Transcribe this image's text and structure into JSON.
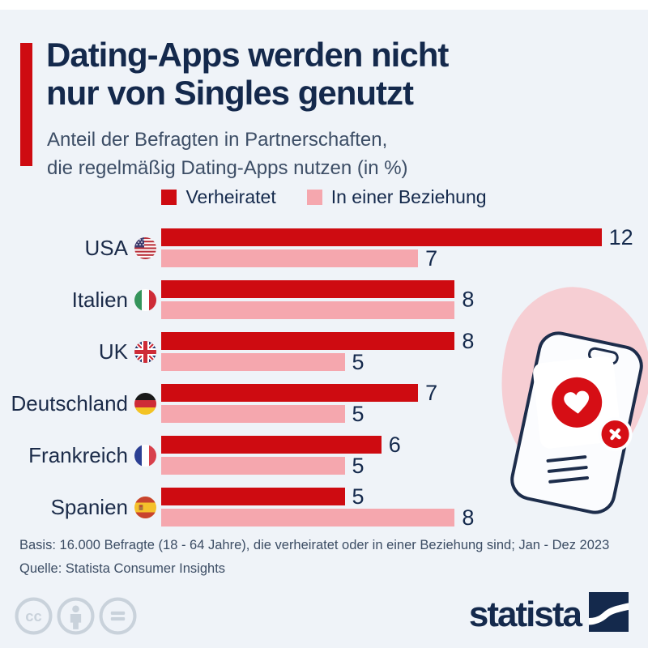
{
  "header": {
    "title_line1": "Dating-Apps werden nicht",
    "title_line2": "nur von Singles genutzt",
    "subtitle_line1": "Anteil der Befragten in Partnerschaften,",
    "subtitle_line2": "die regelmäßig Dating-Apps nutzen (in %)"
  },
  "legend": [
    {
      "label": "Verheiratet",
      "color": "#CE0B11"
    },
    {
      "label": "In einer Beziehung",
      "color": "#F5A7AE"
    }
  ],
  "chart_data": {
    "type": "bar",
    "orientation": "horizontal",
    "categories": [
      "USA",
      "Italien",
      "UK",
      "Deutschland",
      "Frankreich",
      "Spanien"
    ],
    "flags": [
      "us",
      "it",
      "uk",
      "de",
      "fr",
      "es"
    ],
    "series": [
      {
        "name": "Verheiratet",
        "color": "#CE0B11",
        "values": [
          12,
          8,
          8,
          7,
          6,
          5
        ]
      },
      {
        "name": "In einer Beziehung",
        "color": "#F5A7AE",
        "values": [
          7,
          8,
          5,
          5,
          5,
          8
        ]
      }
    ],
    "xlim": [
      0,
      13.2
    ],
    "value_labels": true,
    "grid": false,
    "legend_position": "top"
  },
  "footer": {
    "basis": "Basis: 16.000 Befragte (18 - 64 Jahre), die verheiratet oder in einer Beziehung sind; Jan - Dez 2023",
    "quelle": "Quelle: Statista Consumer Insights"
  },
  "branding": {
    "logo_text": "statista",
    "license_icons": [
      "cc-icon",
      "attribution-person-icon",
      "equals-icon"
    ]
  },
  "colors": {
    "background": "#EFF3F8",
    "title": "#14294C",
    "married_red": "#CE0B11",
    "relationship_pink": "#F5A7AE",
    "blob_pink": "#F6CED3",
    "phone_outline": "#1D2D4B",
    "license_gray": "#C9D2DB"
  }
}
